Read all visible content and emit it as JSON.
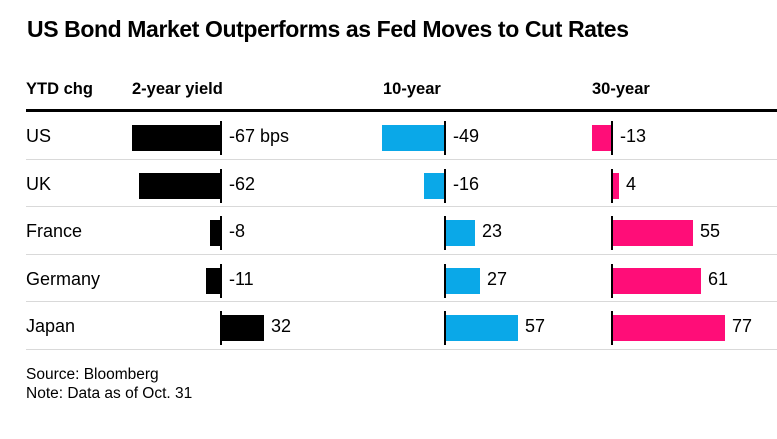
{
  "title": "US Bond Market Outperforms as Fed Moves to Cut Rates",
  "table": {
    "row_header": "YTD chg",
    "columns": [
      {
        "label": "2-year yield",
        "color": "#000000"
      },
      {
        "label": "10-year",
        "color": "#0aa8e8"
      },
      {
        "label": "30-year",
        "color": "#ff0d78"
      }
    ],
    "rows": [
      {
        "country": "US",
        "cells": [
          {
            "value": -67,
            "label": "-67 bps"
          },
          {
            "value": -49,
            "label": "-49"
          },
          {
            "value": -13,
            "label": "-13"
          }
        ]
      },
      {
        "country": "UK",
        "cells": [
          {
            "value": -62,
            "label": "-62"
          },
          {
            "value": -16,
            "label": "-16"
          },
          {
            "value": 4,
            "label": "4"
          }
        ]
      },
      {
        "country": "France",
        "cells": [
          {
            "value": -8,
            "label": "-8"
          },
          {
            "value": 23,
            "label": "23"
          },
          {
            "value": 55,
            "label": "55"
          }
        ]
      },
      {
        "country": "Germany",
        "cells": [
          {
            "value": -11,
            "label": "-11"
          },
          {
            "value": 27,
            "label": "27"
          },
          {
            "value": 61,
            "label": "61"
          }
        ]
      },
      {
        "country": "Japan",
        "cells": [
          {
            "value": 32,
            "label": "32"
          },
          {
            "value": 57,
            "label": "57"
          },
          {
            "value": 77,
            "label": "77"
          }
        ]
      }
    ]
  },
  "footer": {
    "source": "Source: Bloomberg",
    "note": "Note: Data as of Oct. 31"
  },
  "colors": {
    "bar_black": "#000000",
    "bar_cyan": "#0aa8e8",
    "bar_pink": "#ff0d78",
    "separator": "#d9d9d9",
    "header_rule": "#000000"
  },
  "chart_data": {
    "type": "bar",
    "orientation": "horizontal",
    "title": "US Bond Market Outperforms as Fed Moves to Cut Rates",
    "unit": "bps",
    "value_context": "YTD chg",
    "categories": [
      "US",
      "UK",
      "France",
      "Germany",
      "Japan"
    ],
    "series": [
      {
        "name": "2-year yield",
        "color": "#000000",
        "values": [
          -67,
          -62,
          -8,
          -11,
          32
        ]
      },
      {
        "name": "10-year",
        "color": "#0aa8e8",
        "values": [
          -49,
          -16,
          23,
          27,
          57
        ]
      },
      {
        "name": "30-year",
        "color": "#ff0d78",
        "values": [
          -13,
          4,
          55,
          61,
          77
        ]
      }
    ],
    "data_labels": true,
    "grid": false,
    "legend_position": "column-headers",
    "source": "Source: Bloomberg",
    "note": "Note: Data as of Oct. 31"
  }
}
